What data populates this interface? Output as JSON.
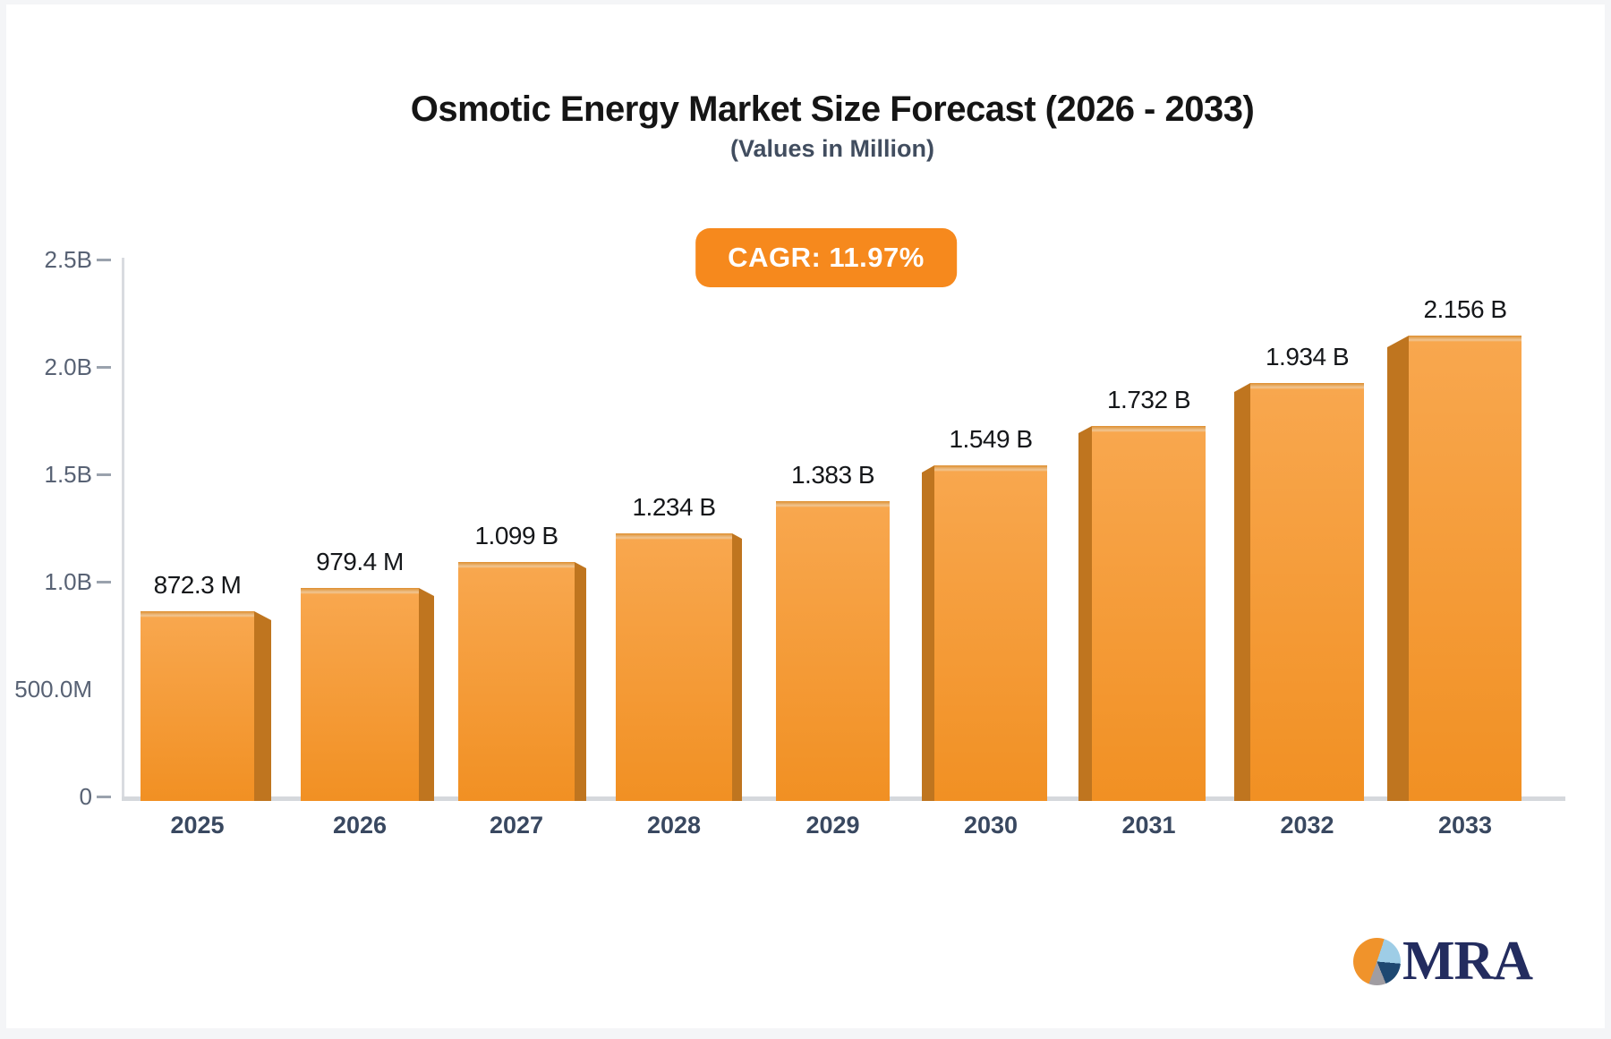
{
  "title": "Osmotic Energy Market Size Forecast (2026 - 2033)",
  "subtitle": "(Values in Million)",
  "badge": {
    "label": "CAGR: 11.97%",
    "color": "#F6891D"
  },
  "chart_data": {
    "type": "bar",
    "title": "Osmotic Energy Market Size Forecast (2026 - 2033)",
    "subtitle": "(Values in Million)",
    "categories": [
      "2025",
      "2026",
      "2027",
      "2028",
      "2029",
      "2030",
      "2031",
      "2032",
      "2033"
    ],
    "values_millions": [
      872.3,
      979.4,
      1099,
      1234,
      1383,
      1549,
      1732,
      1934,
      2156
    ],
    "bar_labels": [
      "872.3 M",
      "979.4 M",
      "1.099 B",
      "1.234 B",
      "1.383 B",
      "1.549 B",
      "1.732 B",
      "1.934 B",
      "2.156 B"
    ],
    "y_ticks": [
      "2.5B",
      "2.0B",
      "1.5B",
      "1.0B",
      "500.0M",
      "0"
    ],
    "ylim_millions": [
      0,
      2500
    ],
    "grid": "off",
    "legend": "none",
    "bar_color_top": "#F8A74E",
    "bar_color_bottom": "#F19023",
    "bar_side_color": "#BF751F",
    "axis_color": "#d9dbe0"
  },
  "logo": {
    "text": "MRA"
  }
}
